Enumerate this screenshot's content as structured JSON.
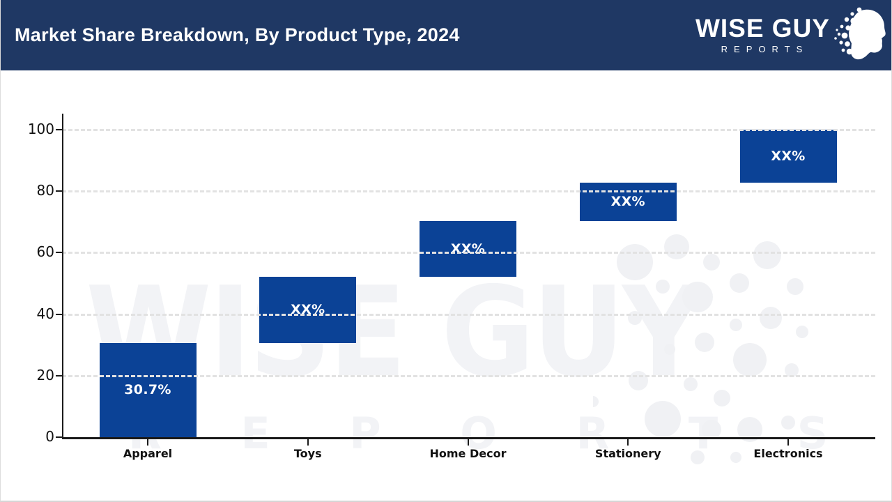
{
  "header": {
    "title": "Market Share Breakdown, By Product Type, 2024",
    "logo": {
      "line1": "WISE GUY",
      "line2": "REPORTS"
    }
  },
  "watermark": {
    "line1": "WISE GUY",
    "line2": "R E P O R T S"
  },
  "colors": {
    "header_bg": "#1F3864",
    "bar": "#0B4296",
    "bar_label": "#FFFFFF",
    "grid": "#E2E2E2",
    "axis": "#1A1A1A",
    "watermark": "#F2F3F6"
  },
  "chart_data": {
    "type": "bar",
    "subtype": "waterfall",
    "title": "Market Share Breakdown, By Product Type, 2024",
    "categories": [
      "Apparel",
      "Toys",
      "Home Decor",
      "Stationery",
      "Electronics"
    ],
    "segments": [
      {
        "category": "Apparel",
        "start": 0,
        "end": 30.7,
        "label": "30.7%"
      },
      {
        "category": "Toys",
        "start": 30.7,
        "end": 52.1,
        "label": "XX%"
      },
      {
        "category": "Home Decor",
        "start": 52.1,
        "end": 70.4,
        "label": "XX%"
      },
      {
        "category": "Stationery",
        "start": 70.4,
        "end": 82.7,
        "label": "XX%"
      },
      {
        "category": "Electronics",
        "start": 82.7,
        "end": 100,
        "label": "XX%"
      }
    ],
    "yticks": [
      0,
      20,
      40,
      60,
      80,
      100
    ],
    "ylim": [
      0,
      100
    ],
    "xlabel": "",
    "ylabel": "",
    "grid": "dashed-horizontal",
    "legend": "none",
    "bar_color": "#0B4296",
    "value_labels_inside": true
  }
}
